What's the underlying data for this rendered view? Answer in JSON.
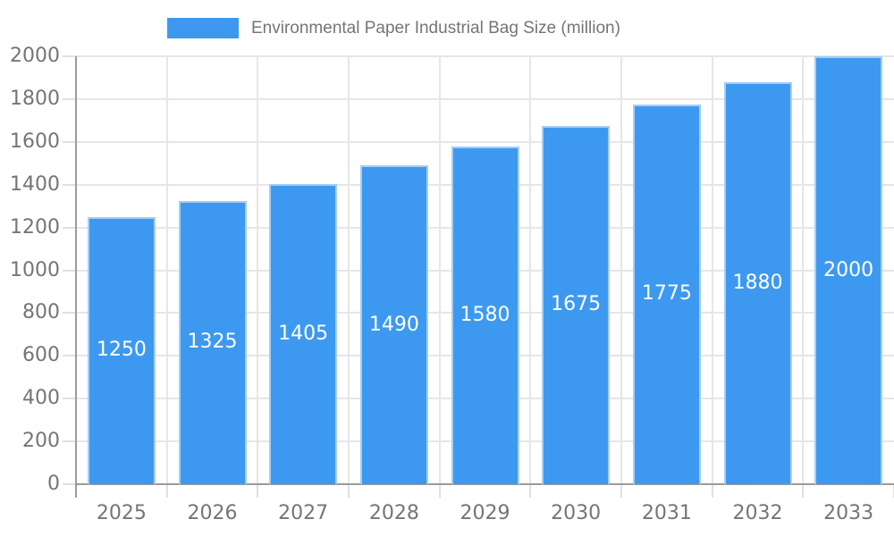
{
  "chart_data": {
    "type": "bar",
    "title": "Environmental Paper Industrial Bag Size (million)",
    "legend": [
      "Environmental Paper Industrial Bag Size (million)"
    ],
    "legend_position": "top",
    "categories": [
      "2025",
      "2026",
      "2027",
      "2028",
      "2029",
      "2030",
      "2031",
      "2032",
      "2033"
    ],
    "values": [
      1250,
      1325,
      1405,
      1490,
      1580,
      1675,
      1775,
      1880,
      2000
    ],
    "xlabel": "",
    "ylabel": "",
    "ylim": [
      0,
      2000
    ],
    "yticks": [
      0,
      200,
      400,
      600,
      800,
      1000,
      1200,
      1400,
      1600,
      1800,
      2000
    ],
    "grid": true,
    "data_labels_position": "inside-center"
  },
  "colors": {
    "bar": "#3d99f0",
    "bar_border": "#a6cdf3",
    "axis": "#9b9b9b",
    "gridline": "#e6e6e6",
    "tick": "#e0e0e0",
    "axis_text": "#757575",
    "data_label_text": "#ffffff",
    "background": "#ffffff"
  }
}
